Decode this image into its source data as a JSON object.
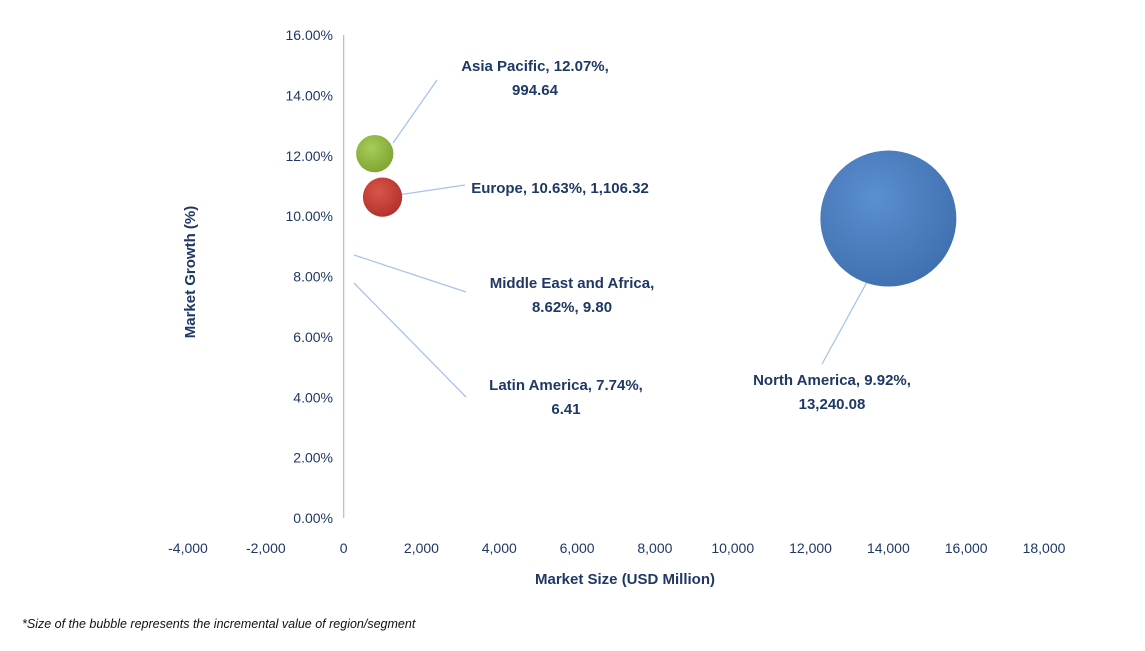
{
  "chart_data": {
    "type": "scatter",
    "subtype": "bubble",
    "xlabel": "Market Size (USD Million)",
    "ylabel": "Market Growth (%)",
    "xlim": [
      -4000,
      18000
    ],
    "ylim": [
      0,
      16
    ],
    "x_ticks": [
      "-4,000",
      "-2,000",
      "0",
      "2,000",
      "4,000",
      "6,000",
      "8,000",
      "10,000",
      "12,000",
      "14,000",
      "16,000",
      "18,000"
    ],
    "y_ticks": [
      "0.00%",
      "2.00%",
      "4.00%",
      "6.00%",
      "8.00%",
      "10.00%",
      "12.00%",
      "14.00%",
      "16.00%"
    ],
    "grid": false,
    "legend": "none",
    "points": [
      {
        "label_lines": [
          "Asia Pacific, 12.07%,",
          "994.64"
        ],
        "x": 800,
        "y": 12.07,
        "size": 994.64,
        "color": "#8db33a"
      },
      {
        "label_lines": [
          "Europe, 10.63%, 1,106.32"
        ],
        "x": 1000,
        "y": 10.63,
        "size": 1106.32,
        "color": "#c0392b"
      },
      {
        "label_lines": [
          "Middle East and Africa,",
          "8.62%, 9.80"
        ],
        "x": 0,
        "y": 8.62,
        "size": 9.8,
        "color": "#4a7ebb"
      },
      {
        "label_lines": [
          "Latin America, 7.74%,",
          "6.41"
        ],
        "x": 0,
        "y": 7.74,
        "size": 6.41,
        "color": "#4a7ebb"
      },
      {
        "label_lines": [
          "North America, 9.92%,",
          "13,240.08"
        ],
        "x": 14000,
        "y": 9.92,
        "size": 13240.08,
        "color": "#4a7ebb"
      }
    ],
    "footnote": "*Size of the bubble represents the incremental value of region/segment"
  }
}
